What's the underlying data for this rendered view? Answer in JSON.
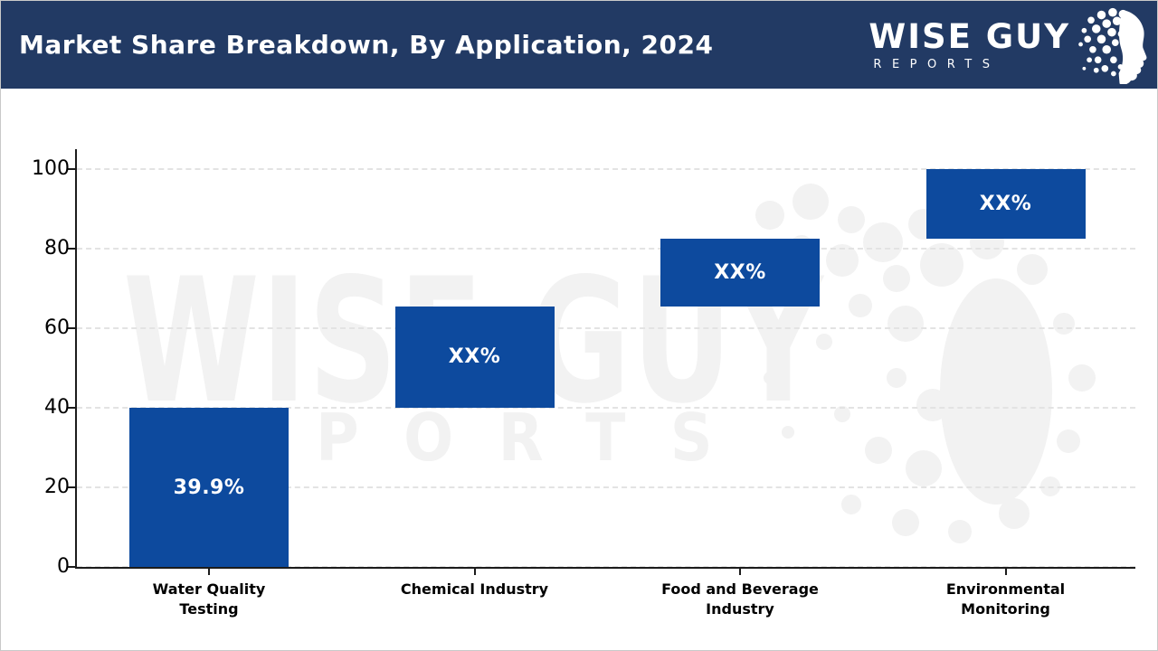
{
  "header": {
    "title": "Market Share Breakdown, By Application, 2024",
    "logo": {
      "line1": "WISE GUY",
      "line2": "REPORTS"
    }
  },
  "watermark": {
    "line1": "WISE GUY",
    "line2": "REPORTS"
  },
  "colors": {
    "header_bg": "#223a64",
    "bar": "#0d4a9e",
    "grid": "#e3e3e3",
    "axis": "#1c1c1c",
    "bar_label": "#ffffff",
    "watermark": "#f2f2f2"
  },
  "chart_data": {
    "type": "bar",
    "subtype": "waterfall",
    "title": "Market Share Breakdown, By Application, 2024",
    "xlabel": "",
    "ylabel": "",
    "categories": [
      "Water Quality\nTesting",
      "Chemical Industry",
      "Food and Beverage\nIndustry",
      "Environmental\nMonitoring"
    ],
    "segments": [
      {
        "category": "Water Quality Testing",
        "start": 0,
        "end": 39.9,
        "label": "39.9%"
      },
      {
        "category": "Chemical Industry",
        "start": 40,
        "end": 65.5,
        "label": "XX%"
      },
      {
        "category": "Food and Beverage Industry",
        "start": 65.5,
        "end": 82.5,
        "label": "XX%"
      },
      {
        "category": "Environmental Monitoring",
        "start": 82.5,
        "end": 100,
        "label": "XX%"
      }
    ],
    "yticks": [
      0,
      20,
      40,
      60,
      80,
      100
    ],
    "ylim": [
      0,
      105
    ],
    "grid": "dashed-horizontal",
    "legend": "none"
  }
}
